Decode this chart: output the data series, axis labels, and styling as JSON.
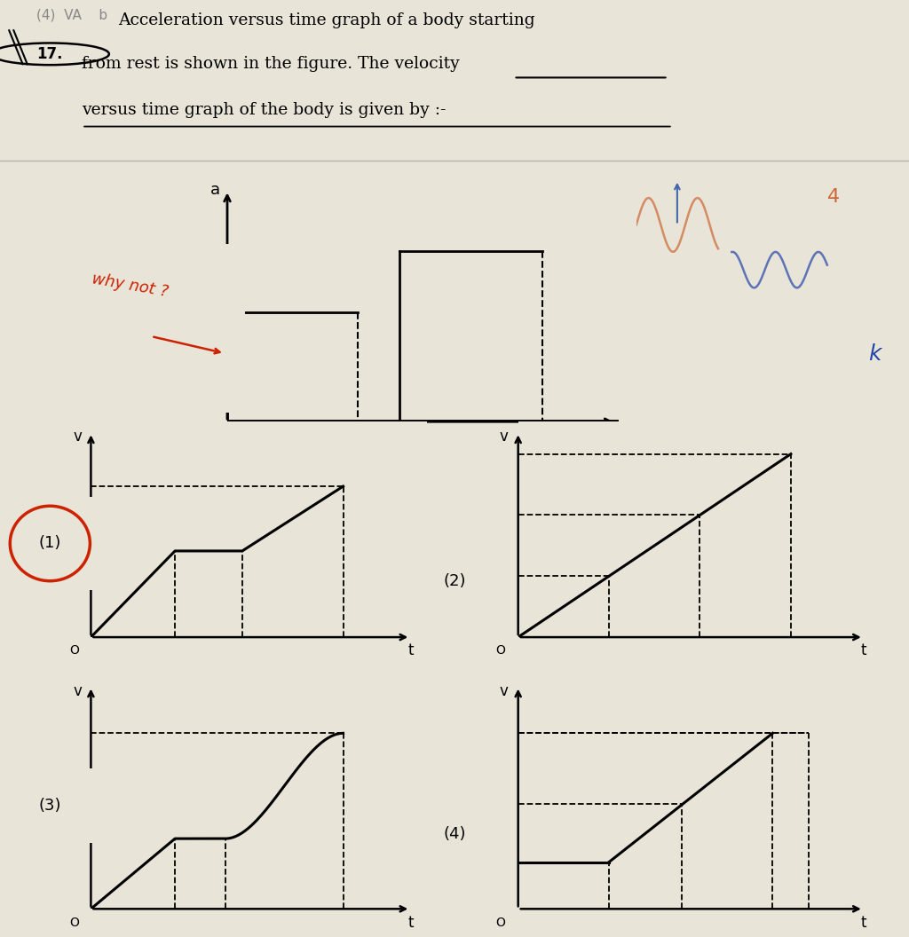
{
  "bg_color": "#d8d4c8",
  "paper_color": "#e8e4d8",
  "line_color": "#111111",
  "red_color": "#cc2200",
  "blue_color": "#2244aa",
  "title_line1": "Acceleration versus time graph of a body starting",
  "title_line2": "from rest is shown in the figure. The velocity",
  "title_line3": "versus time graph of the body is given by :-",
  "why_not": "why not ?",
  "label1": "(1)",
  "label2": "(2)",
  "label3": "(3)",
  "label4": "(4)"
}
